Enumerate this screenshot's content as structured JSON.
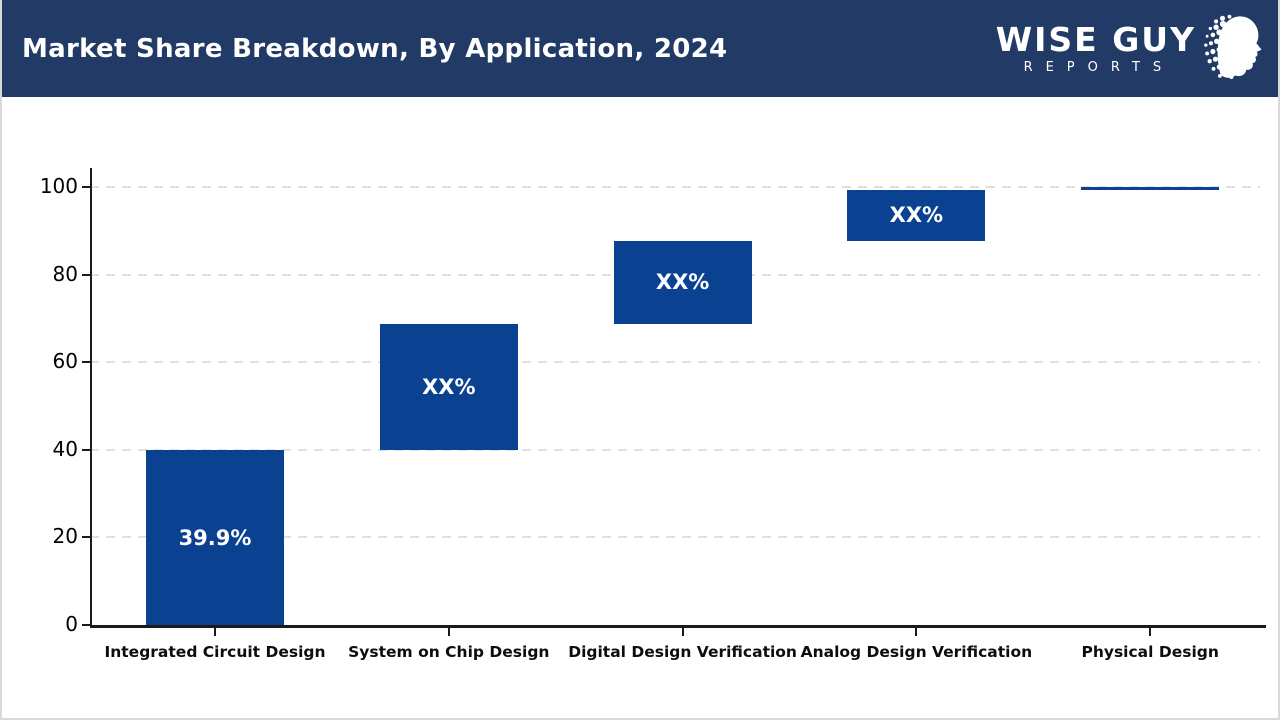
{
  "header": {
    "logo": {
      "brand": "WISE GUY",
      "sub": "REPORTS"
    },
    "bg_color": "#213a66"
  },
  "watermark": {
    "brand": "WISE GUY",
    "sub": "REPORTS"
  },
  "chart_data": {
    "type": "bar",
    "subtype": "floating-waterfall",
    "title": "Market Share Breakdown, By Application, 2024",
    "xlabel": "",
    "ylabel": "",
    "categories": [
      "Integrated Circuit Design",
      "System on Chip Design",
      "Digital Design Verification",
      "Analog Design Verification",
      "Physical Design"
    ],
    "series": [
      {
        "name": "Market share (%)",
        "segments": [
          {
            "from": 0,
            "to": 39.9,
            "label": "39.9%"
          },
          {
            "from": 39.9,
            "to": 68.8,
            "label": "XX%"
          },
          {
            "from": 68.8,
            "to": 87.7,
            "label": "XX%"
          },
          {
            "from": 87.7,
            "to": 99.4,
            "label": "XX%"
          },
          {
            "from": 99.4,
            "to": 100,
            "label": ""
          }
        ]
      }
    ],
    "ylim": [
      0,
      100
    ],
    "yticks": [
      0,
      20,
      40,
      60,
      80,
      100
    ],
    "grid": "horizontal-dashed",
    "legend": "none",
    "colors": {
      "bar": "#0a4191",
      "bar_label": "#ffffff",
      "axis": "#1a1a1a",
      "grid": "#e0e0e0",
      "header_bg": "#213a66",
      "header_text": "#ffffff"
    }
  }
}
